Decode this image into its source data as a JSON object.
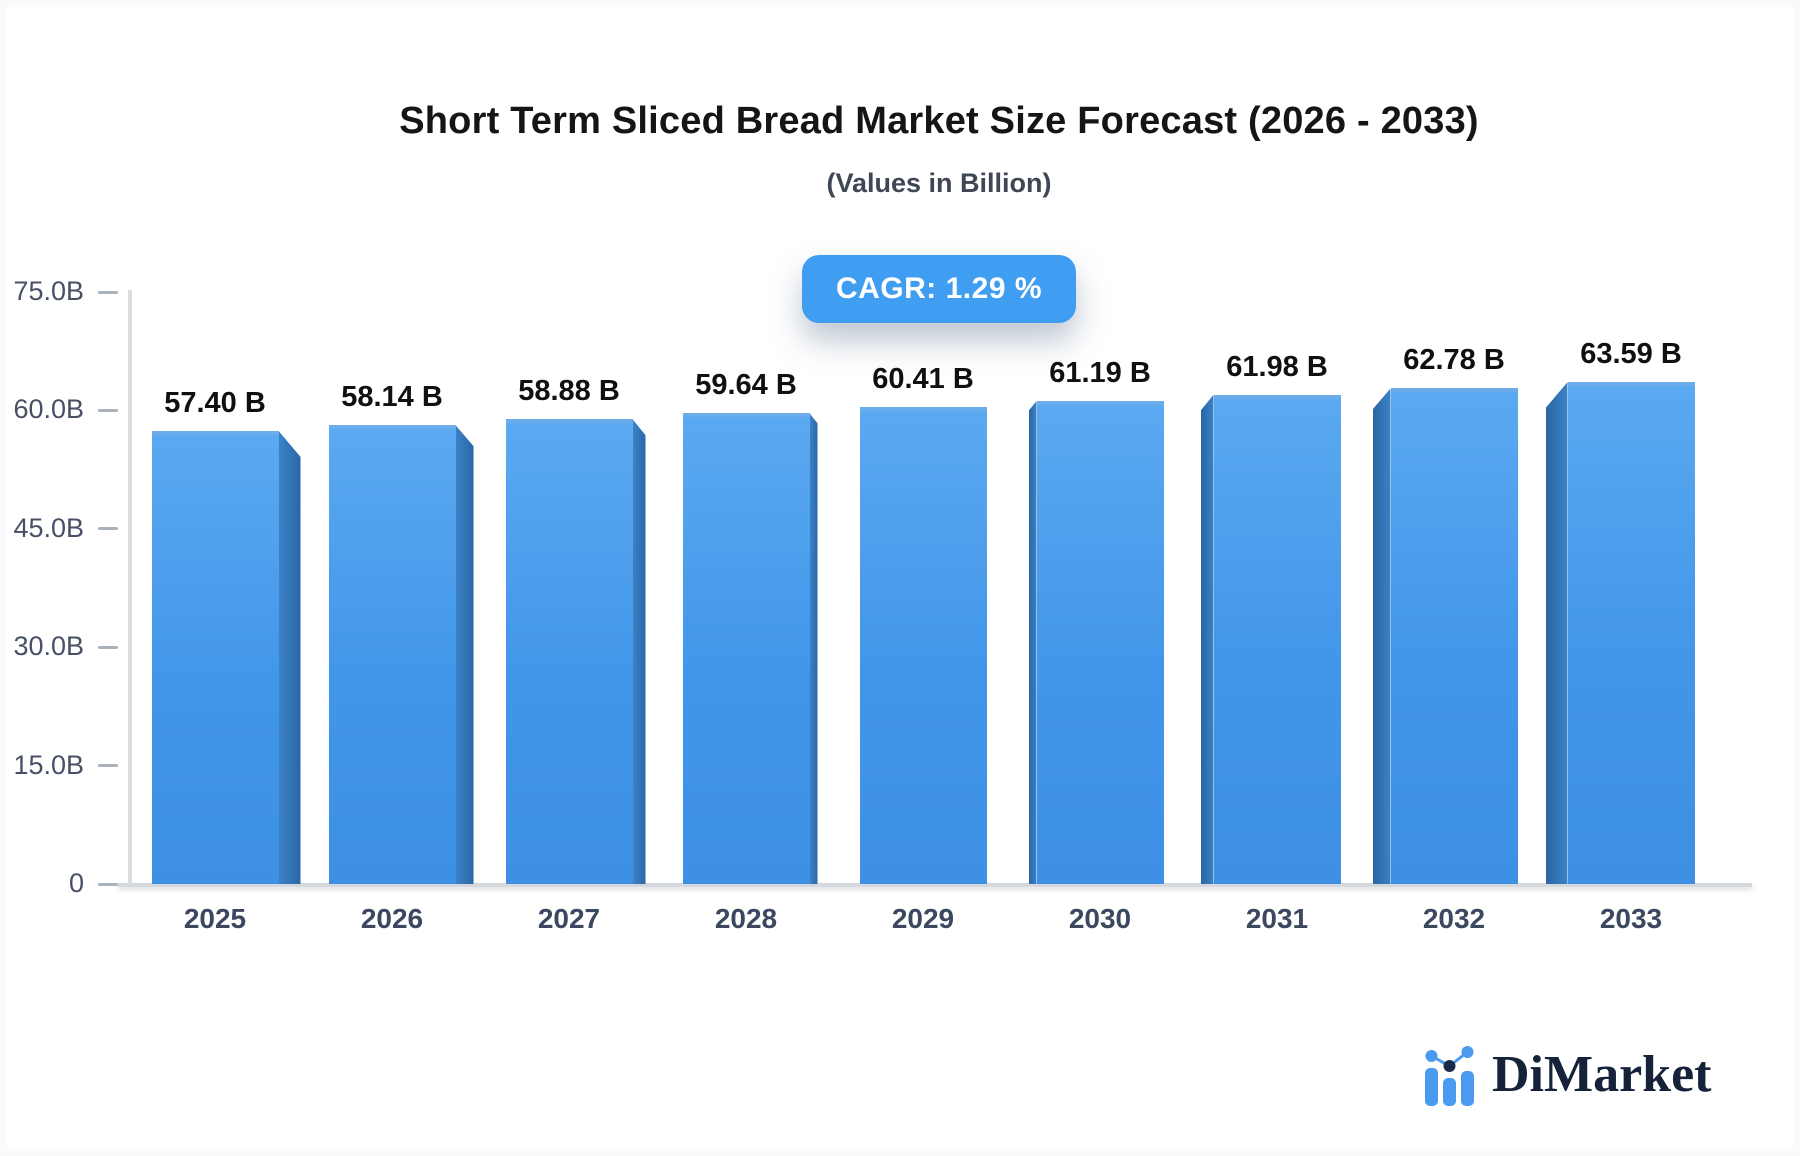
{
  "header": {
    "title": "Short Term Sliced Bread Market Size Forecast (2026 - 2033)",
    "subtitle": "(Values in Billion)",
    "cagr_label": "CAGR: 1.29 %"
  },
  "brand": {
    "name": "DiMarket",
    "icon": "bar-line-chart-icon",
    "icon_color": "#4a9bf0",
    "icon_dot_dark_color": "#1c2b4a",
    "text_color": "#15223a"
  },
  "colors": {
    "accent_blue": "#3f9ef2",
    "bar_face": "#4a9fec",
    "bar_side": "#2f72b2",
    "axis_gray": "#d9dde2",
    "tick_text": "#475066",
    "year_text": "#3c4760",
    "value_text": "#101010"
  },
  "chart_data": {
    "type": "bar",
    "style": "3d-perspective-center",
    "title": "Short Term Sliced Bread Market Size Forecast (2026 - 2033)",
    "subtitle": "(Values in Billion)",
    "cagr": "1.29 %",
    "categories": [
      "2025",
      "2026",
      "2027",
      "2028",
      "2029",
      "2030",
      "2031",
      "2032",
      "2033"
    ],
    "values": [
      57.4,
      58.14,
      58.88,
      59.64,
      60.41,
      61.19,
      61.98,
      62.78,
      63.59
    ],
    "value_labels": [
      "57.40 B",
      "58.14 B",
      "58.88 B",
      "59.64 B",
      "60.41 B",
      "61.19 B",
      "61.98 B",
      "62.78 B",
      "63.59 B"
    ],
    "xlabel": "",
    "ylabel": "",
    "ylim": [
      0,
      75
    ],
    "yticks": [
      {
        "label": "75.0B",
        "value": 75
      },
      {
        "label": "60.0B",
        "value": 60
      },
      {
        "label": "45.0B",
        "value": 45
      },
      {
        "label": "30.0B",
        "value": 30
      },
      {
        "label": "15.0B",
        "value": 15
      },
      {
        "label": "0",
        "value": 0
      }
    ],
    "grid": false,
    "legend_position": "none"
  }
}
